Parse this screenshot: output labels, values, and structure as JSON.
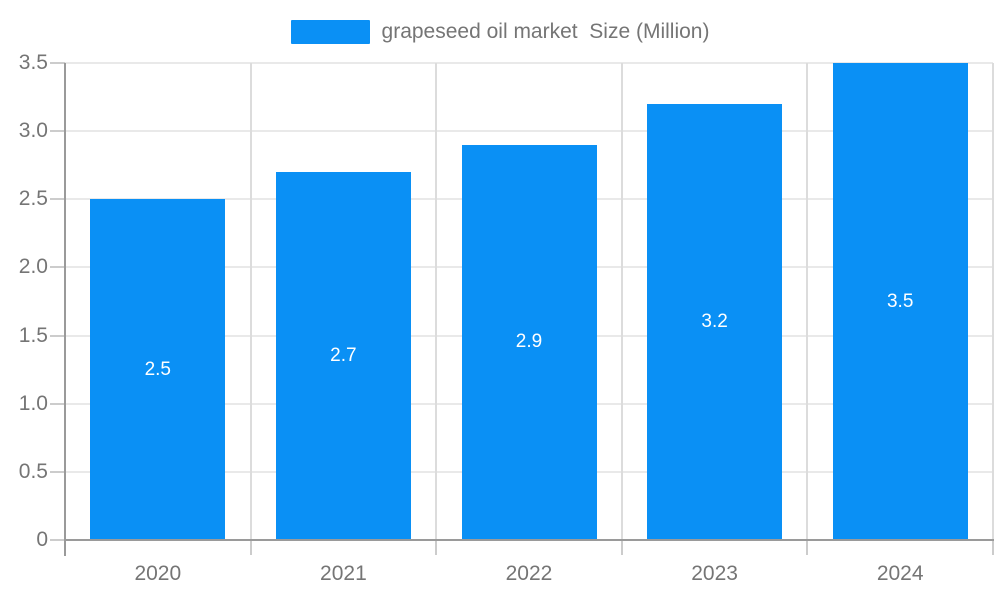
{
  "chart_data": {
    "type": "bar",
    "title": "grapeseed oil market  Size (Million)",
    "categories": [
      "2020",
      "2021",
      "2022",
      "2023",
      "2024"
    ],
    "values": [
      2.5,
      2.7,
      2.9,
      3.2,
      3.5
    ],
    "value_labels": [
      "2.5",
      "2.7",
      "2.9",
      "3.2",
      "3.5"
    ],
    "series_name": "grapeseed oil market  Size (Million)",
    "xlabel": "",
    "ylabel": "",
    "ylim": [
      0,
      3.5
    ],
    "y_ticks": [
      0,
      0.5,
      1.0,
      1.5,
      2.0,
      2.5,
      3.0,
      3.5
    ],
    "y_tick_labels": [
      "0",
      "0.5",
      "1.0",
      "1.5",
      "2.0",
      "2.5",
      "3.0",
      "3.5"
    ],
    "grid": "on",
    "legend_position": "top-center",
    "value_labels_position": "inside-center"
  },
  "legend": {
    "label": "grapeseed oil market  Size (Million)",
    "swatch_color": "#0a90f5"
  },
  "colors": {
    "bar": "#0a90f5",
    "value_text": "#ffffff",
    "axis_text": "#757575",
    "axis_line": "#9a9a9a",
    "tick": "#cccccc",
    "h_grid": "#e9e9e9",
    "v_grid": "#dcdcdc",
    "background": "#ffffff"
  }
}
